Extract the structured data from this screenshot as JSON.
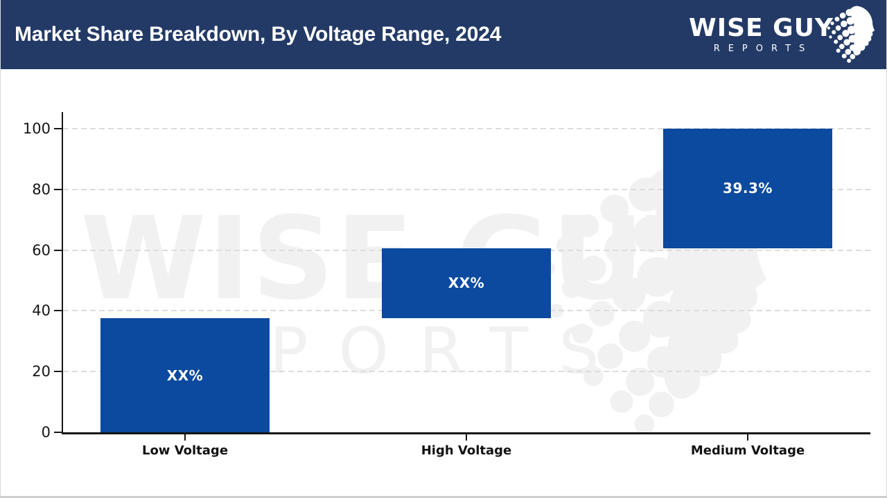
{
  "header": {
    "title": "Market Share Breakdown, By Voltage Range, 2024",
    "logo_line1": "WISE GUY",
    "logo_line2": "REPORTS"
  },
  "watermark": {
    "line1": "WISE GUY",
    "line2": "REPORTS"
  },
  "chart_data": {
    "type": "bar",
    "variant": "waterfall",
    "title": "Market Share Breakdown, By Voltage Range, 2024",
    "categories": [
      "Low Voltage",
      "High Voltage",
      "Medium Voltage"
    ],
    "segments": [
      {
        "category": "Low Voltage",
        "start": 0,
        "end": 37.5,
        "value": 37.5,
        "label": "XX%"
      },
      {
        "category": "High Voltage",
        "start": 37.5,
        "end": 60.7,
        "value": 23.2,
        "label": "XX%"
      },
      {
        "category": "Medium Voltage",
        "start": 60.7,
        "end": 100,
        "value": 39.3,
        "label": "39.3%"
      }
    ],
    "xlabel": "",
    "ylabel": "",
    "yticks": [
      0,
      20,
      40,
      60,
      80,
      100
    ],
    "ylim": [
      0,
      105.5
    ],
    "grid": "horizontal-dashed",
    "legend": "none",
    "bar_color": "#0b4a9e",
    "bar_label_color": "#ffffff"
  },
  "colors": {
    "header_bg": "#233a66",
    "bar": "#0b4a9e",
    "grid": "#dcdcdc",
    "axis": "#151515",
    "watermark": "#f1f1f1",
    "page_border": "#cfcfcf"
  }
}
